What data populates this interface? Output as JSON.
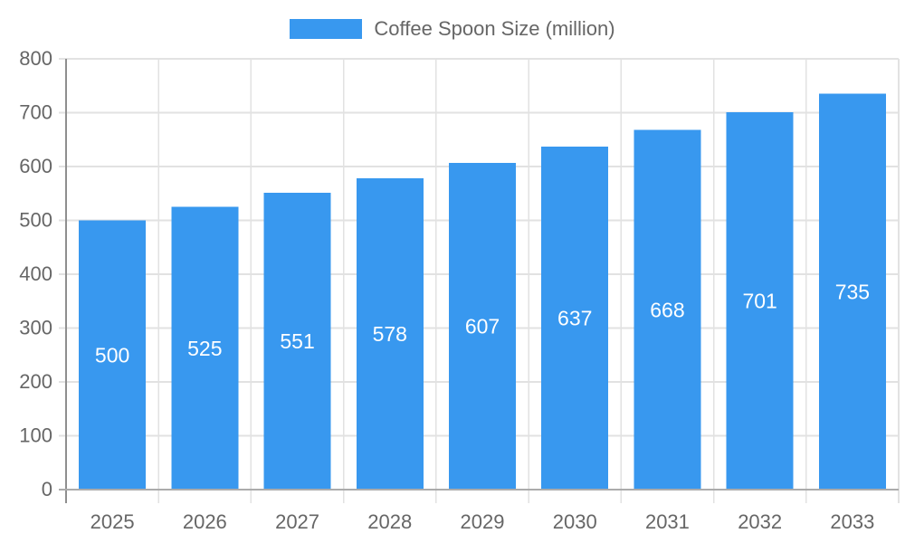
{
  "legend": {
    "label": "Coffee Spoon Size (million)"
  },
  "chart_data": {
    "type": "bar",
    "title": "Coffee Spoon Size (million)",
    "series_name": "Coffee Spoon Size (million)",
    "categories": [
      "2025",
      "2026",
      "2027",
      "2028",
      "2029",
      "2030",
      "2031",
      "2032",
      "2033"
    ],
    "values": [
      500,
      525,
      551,
      578,
      607,
      637,
      668,
      701,
      735
    ],
    "xlabel": "",
    "ylabel": "",
    "ylim": [
      0,
      800
    ],
    "yticks": [
      0,
      100,
      200,
      300,
      400,
      500,
      600,
      700,
      800
    ],
    "grid": true,
    "legend_position": "top",
    "value_labels": "inside-center-white",
    "colors": {
      "bar": "#3898EF",
      "grid": "#E2E2E2",
      "y_axis_line": "#8F8F8F",
      "x_axis_line": "#ABABAB",
      "tick_label": "#666666",
      "value_label": "#FFFFFF",
      "legend_text": "#666666",
      "background": "#FFFFFF"
    }
  }
}
